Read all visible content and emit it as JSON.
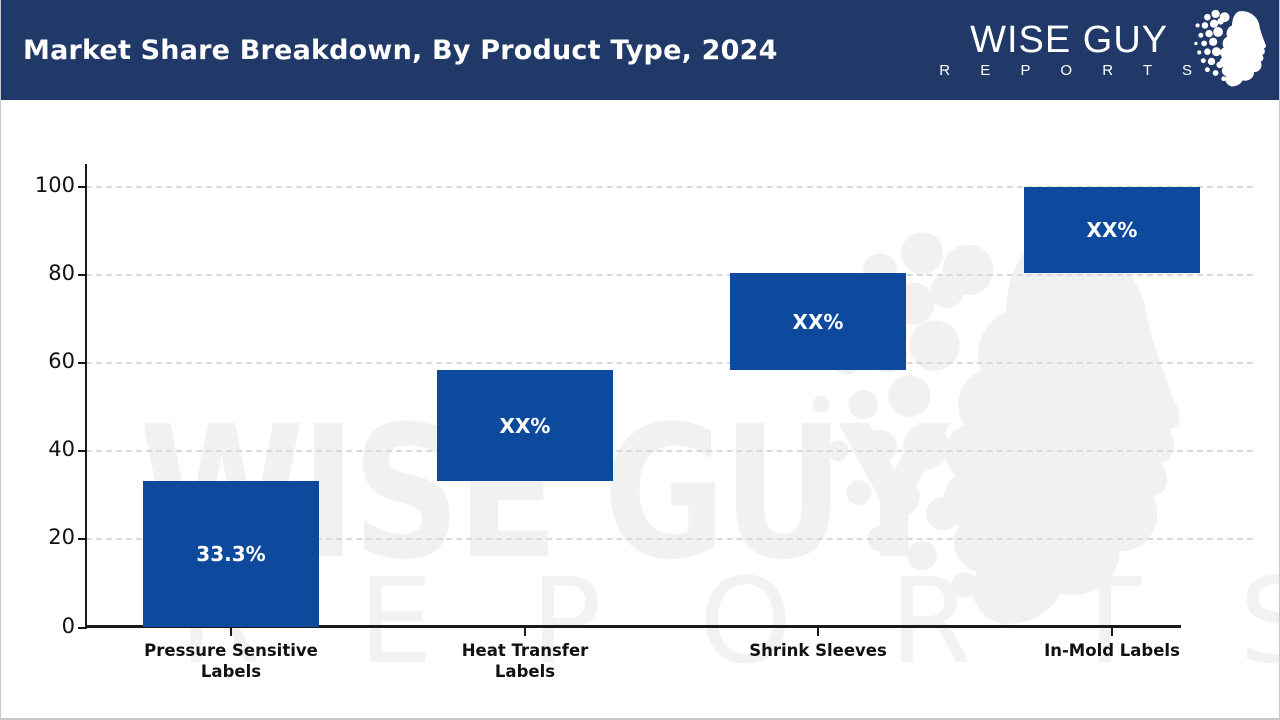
{
  "header": {
    "title": "Market Share Breakdown, By Product Type, 2024",
    "background_color": "#213968",
    "logo": {
      "wordmark": "WISE GUY",
      "subtext": "R E P O R T S"
    }
  },
  "watermark": {
    "wordmark": "WISE GUY",
    "subtext": "R E P O R T S"
  },
  "chart_data": {
    "type": "bar",
    "subtype": "waterfall",
    "title": "Market Share Breakdown, By Product Type, 2024",
    "categories": [
      "Pressure Sensitive Labels",
      "Heat Transfer Labels",
      "Shrink Sleeves",
      "In-Mold Labels"
    ],
    "segments": [
      {
        "category": "Pressure Sensitive Labels",
        "category_lines": [
          "Pressure Sensitive",
          "Labels"
        ],
        "start": 0,
        "end": 33.3,
        "label": "33.3%"
      },
      {
        "category": "Heat Transfer Labels",
        "category_lines": [
          "Heat Transfer",
          "Labels"
        ],
        "start": 33.3,
        "end": 58.3,
        "label": "XX%"
      },
      {
        "category": "Shrink Sleeves",
        "category_lines": [
          "Shrink Sleeves"
        ],
        "start": 58.3,
        "end": 80.4,
        "label": "XX%"
      },
      {
        "category": "In-Mold Labels",
        "category_lines": [
          "In-Mold Labels"
        ],
        "start": 80.4,
        "end": 100,
        "label": "XX%"
      }
    ],
    "yticks": [
      0,
      20,
      40,
      60,
      80,
      100
    ],
    "ylim": [
      0,
      105
    ],
    "xlabel": "",
    "ylabel": "",
    "grid": "horizontal-dashed",
    "legend": "none",
    "bar_color": "#0d4a9d",
    "value_label_color": "#ffffff",
    "axis_color": "#1a1a1a",
    "gridline_color": "#d9d9d9"
  }
}
